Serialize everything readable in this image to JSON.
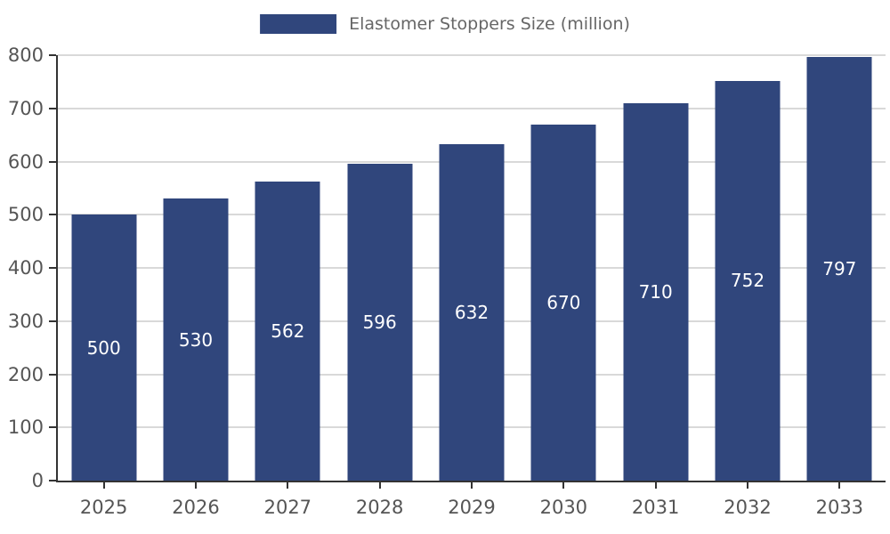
{
  "chart_data": {
    "type": "bar",
    "title": "Elastomer Stoppers Size (million)",
    "categories": [
      "2025",
      "2026",
      "2027",
      "2028",
      "2029",
      "2030",
      "2031",
      "2032",
      "2033"
    ],
    "values": [
      500,
      530,
      562,
      596,
      632,
      670,
      710,
      752,
      797
    ],
    "xlabel": "",
    "ylabel": "",
    "ylim": [
      0,
      800
    ],
    "yticks": [
      0,
      100,
      200,
      300,
      400,
      500,
      600,
      700,
      800
    ],
    "grid": "horizontal",
    "legend_position": "top-center",
    "bar_color": "#30467c",
    "value_label_color": "#ffffff",
    "axis_text_color": "#555555",
    "legend_text_color": "#666666"
  }
}
